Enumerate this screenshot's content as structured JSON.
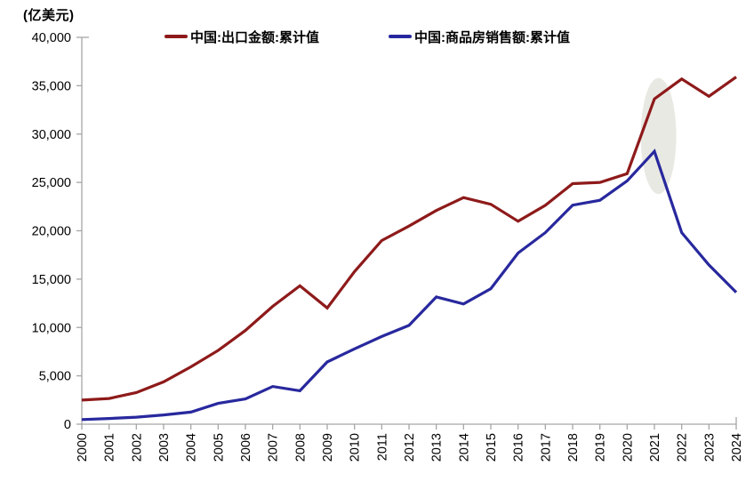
{
  "chart": {
    "unit_label": "(亿美元)",
    "legend": [
      {
        "label": "中国:出口金额:累计值",
        "color": "#8e1a1a"
      },
      {
        "label": "中国:商品房销售额:累计值",
        "color": "#28289e"
      }
    ],
    "axis_color": "#a6a6a6",
    "text_color": "#000000"
  },
  "chart_data": {
    "type": "line",
    "title": "",
    "xlabel": "",
    "ylabel": "(亿美元)",
    "ylim": [
      0,
      40000
    ],
    "ytick_step": 5000,
    "grid": false,
    "legend_position": "top",
    "x": [
      2000,
      2001,
      2002,
      2003,
      2004,
      2005,
      2006,
      2007,
      2008,
      2009,
      2010,
      2011,
      2012,
      2013,
      2014,
      2015,
      2016,
      2017,
      2018,
      2019,
      2020,
      2021,
      2022,
      2023,
      2024
    ],
    "series": [
      {
        "name": "中国:出口金额:累计值",
        "color": "#8e1a1a",
        "values": [
          2490,
          2660,
          3260,
          4380,
          5930,
          7620,
          9690,
          12180,
          14310,
          12020,
          15780,
          18990,
          20490,
          22100,
          23430,
          22740,
          20980,
          22630,
          24870,
          25000,
          25900,
          33640,
          35700,
          33900,
          35900
        ]
      },
      {
        "name": "中国:商品房销售额:累计值",
        "color": "#28289e",
        "values": [
          480,
          590,
          730,
          960,
          1250,
          2150,
          2610,
          3900,
          3460,
          6440,
          7790,
          9070,
          10220,
          13160,
          12430,
          14010,
          17700,
          19810,
          22650,
          23150,
          25160,
          28210,
          19810,
          16470,
          13640
        ]
      }
    ],
    "annotations": [
      {
        "type": "ellipse-highlight",
        "x_year": 2021.15,
        "y_value": 29800,
        "rx_years": 0.65,
        "ry_value": 6000,
        "color": "#e9e9e3"
      }
    ]
  }
}
